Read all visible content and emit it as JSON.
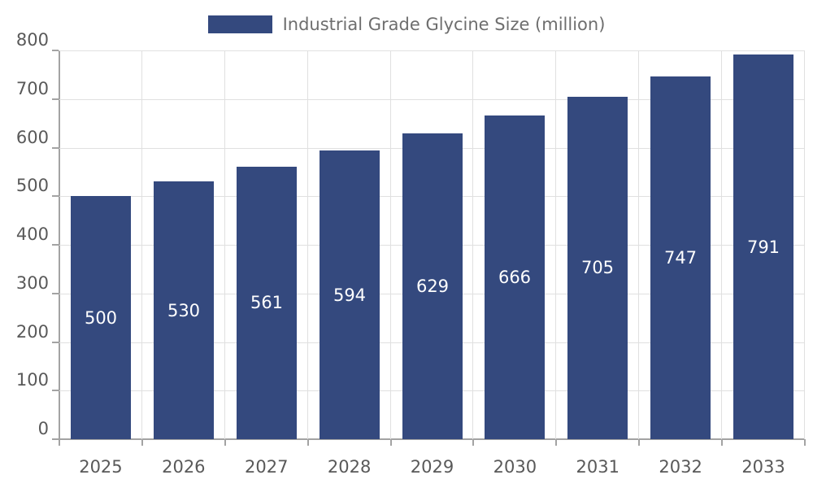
{
  "legend": {
    "label": "Industrial Grade Glycine Size (million)"
  },
  "chart_data": {
    "type": "bar",
    "title": "Industrial Grade Glycine Size (million)",
    "categories": [
      "2025",
      "2026",
      "2027",
      "2028",
      "2029",
      "2030",
      "2031",
      "2032",
      "2033"
    ],
    "values": [
      500,
      530,
      561,
      594,
      629,
      666,
      705,
      747,
      791
    ],
    "xlabel": "",
    "ylabel": "",
    "ylim": [
      0,
      800
    ],
    "yticks": [
      0,
      100,
      200,
      300,
      400,
      500,
      600,
      700,
      800
    ],
    "grid": true,
    "legend_position": "top",
    "value_labels": "inside-center"
  },
  "colors": {
    "bar": "#34497E",
    "grid": "#e0e0e0",
    "axis": "#a3a3a3",
    "tick_label": "#595959",
    "legend_text": "#6e6e6e",
    "value_label": "#ffffff",
    "background": "#ffffff"
  }
}
